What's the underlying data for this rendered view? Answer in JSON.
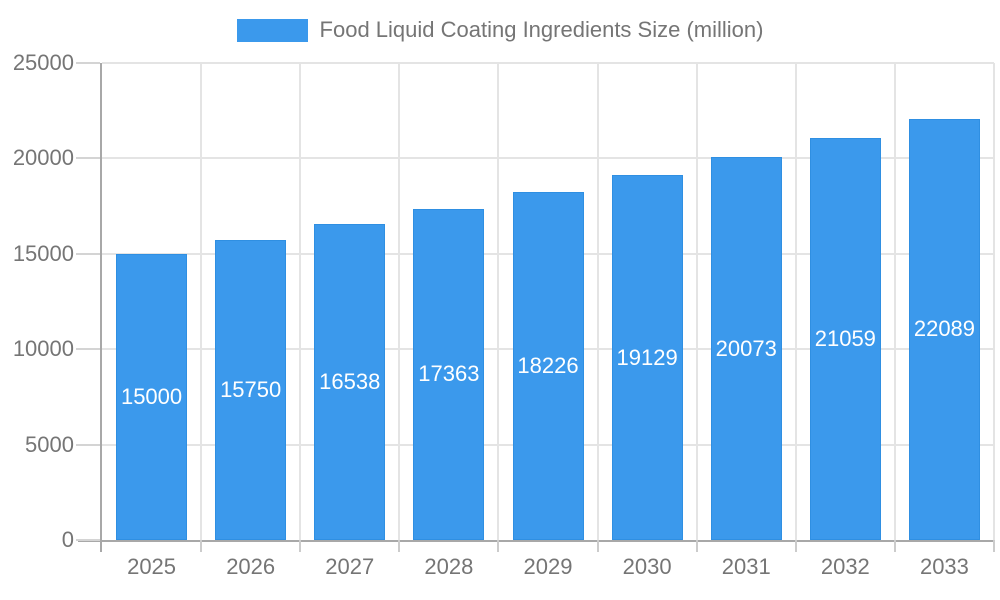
{
  "legend": {
    "label": "Food Liquid Coating Ingredients Size (million)"
  },
  "colors": {
    "bar_fill": "#3b99ec",
    "bar_border": "#2f8fe2",
    "grid": "#e4e4e4",
    "axis": "#a8a8a8",
    "tick": "#cccccc",
    "axis_text": "#757575",
    "bar_label_text": "#ffffff",
    "background": "#ffffff"
  },
  "chart_data": {
    "type": "bar",
    "title": "Food Liquid Coating Ingredients Size (million)",
    "categories": [
      "2025",
      "2026",
      "2027",
      "2028",
      "2029",
      "2030",
      "2031",
      "2032",
      "2033"
    ],
    "values": [
      15000,
      15750,
      16538,
      17363,
      18226,
      19129,
      20073,
      21059,
      22089
    ],
    "bar_labels": [
      "15000",
      "15750",
      "16538",
      "17363",
      "18226",
      "19129",
      "20073",
      "21059",
      "22089"
    ],
    "xlabel": "",
    "ylabel": "",
    "ylim": [
      0,
      25000
    ],
    "yticks": [
      0,
      5000,
      10000,
      15000,
      20000,
      25000
    ],
    "ytick_labels": [
      "0",
      "5000",
      "10000",
      "15000",
      "20000",
      "25000"
    ],
    "grid": true,
    "legend_position": "top",
    "bar_value_labels_inside": true
  }
}
